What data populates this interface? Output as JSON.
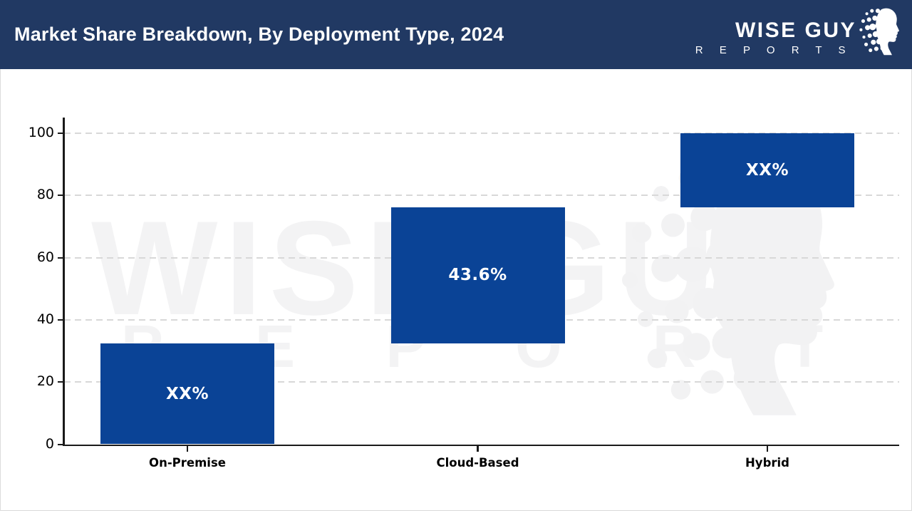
{
  "header": {
    "title": "Market Share Breakdown, By Deployment Type, 2024",
    "logo": {
      "wordmark": "WISE GUY",
      "reports": "R E P O R T S"
    }
  },
  "watermark": {
    "wordmark": "WISE GUY",
    "reports": "R E P O R T S"
  },
  "chart_data": {
    "type": "bar",
    "variant": "floating-stacked-segments",
    "title": "Market Share Breakdown, By Deployment Type, 2024",
    "categories": [
      "On-Premise",
      "Cloud-Based",
      "Hybrid"
    ],
    "segments": [
      {
        "category": "On-Premise",
        "start": 0,
        "end": 32.5,
        "label": "XX%"
      },
      {
        "category": "Cloud-Based",
        "start": 32.5,
        "end": 76.1,
        "value": 43.6,
        "label": "43.6%"
      },
      {
        "category": "Hybrid",
        "start": 76.1,
        "end": 100,
        "label": "XX%"
      }
    ],
    "xlabel": "",
    "ylabel": "",
    "ylim": [
      0,
      100
    ],
    "yticks": [
      0,
      20,
      40,
      60,
      80,
      100
    ],
    "grid": {
      "horizontal": true,
      "style": "dashed",
      "color": "#d8d8d8"
    },
    "legend": null,
    "bar_color": "#0a4396",
    "bar_label_color": "#ffffff"
  },
  "colors": {
    "header_background": "#213963",
    "title_text": "#ffffff",
    "axis": "#1a1a1a",
    "watermark": "#f3f3f4",
    "page_background": "#ffffff"
  }
}
